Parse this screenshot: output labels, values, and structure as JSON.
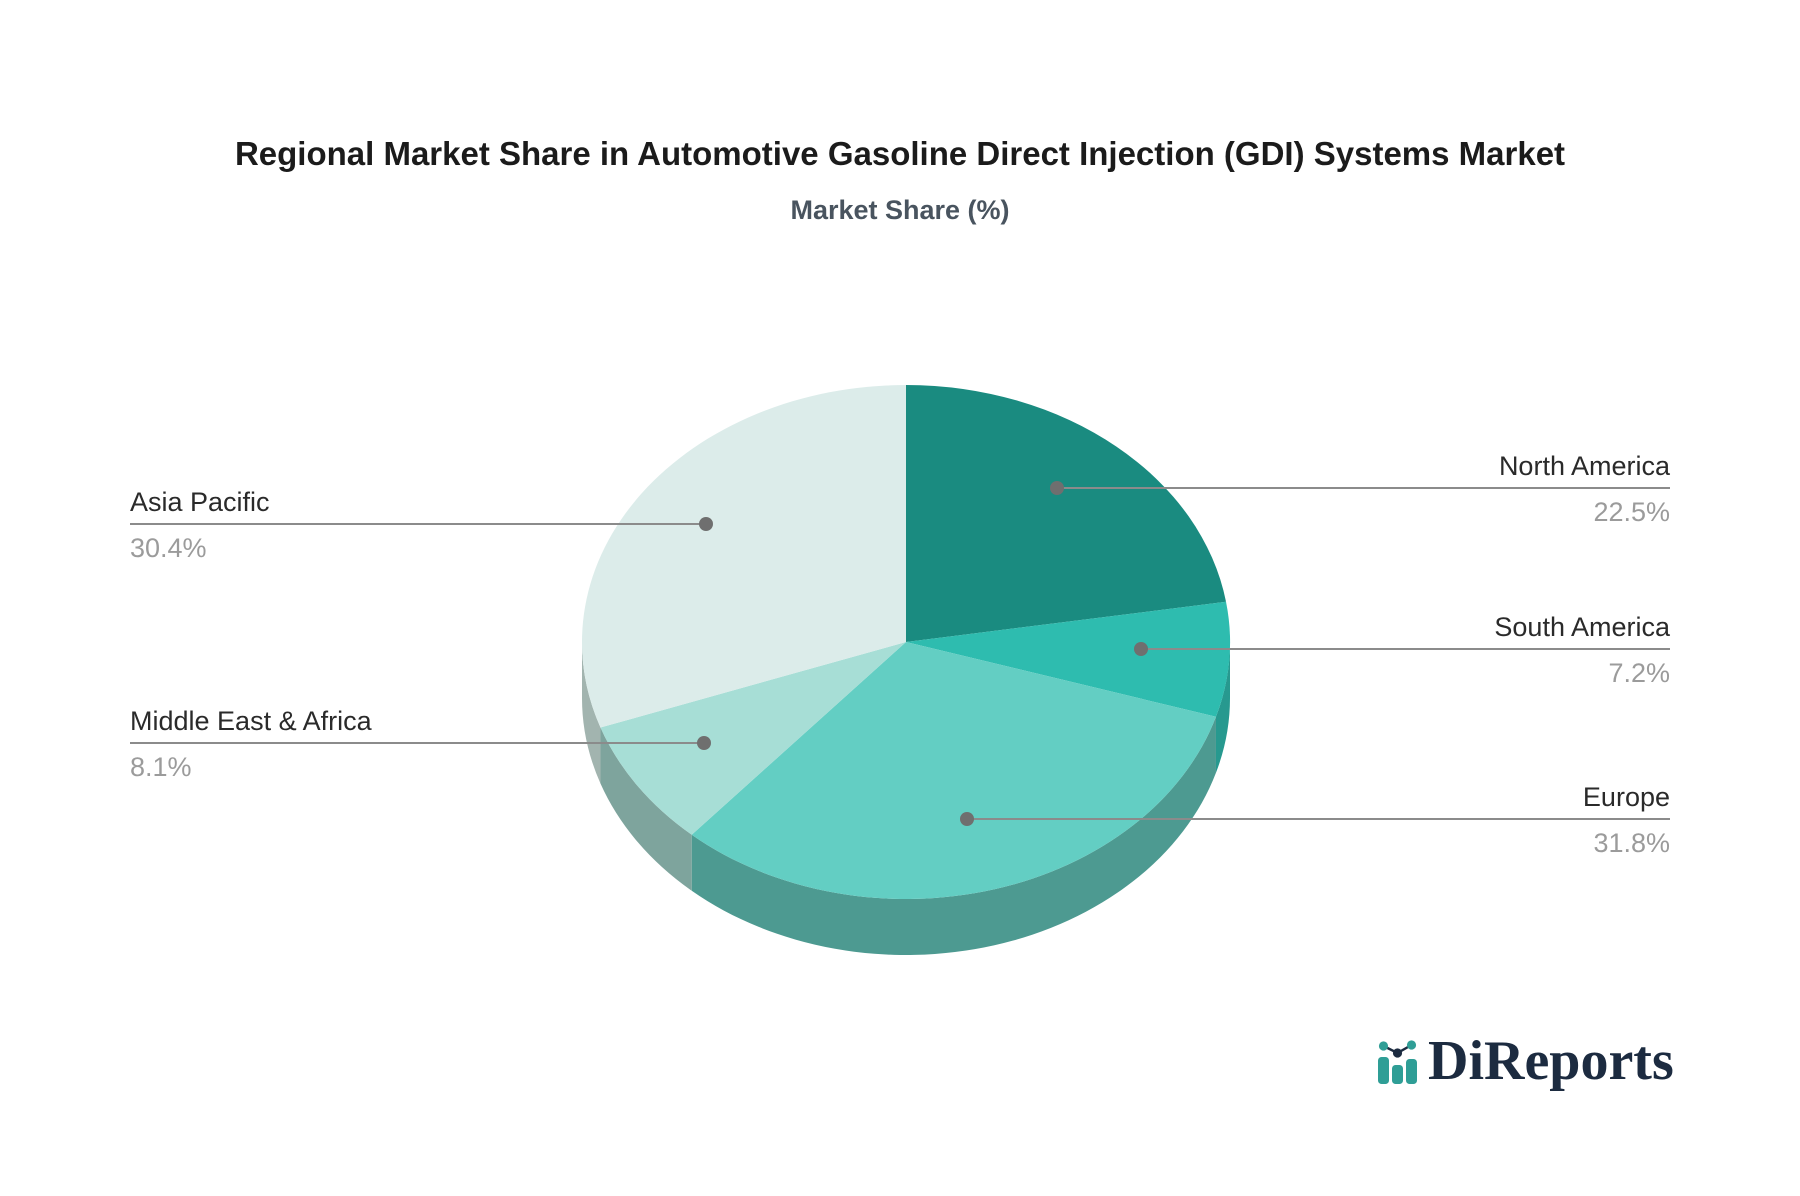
{
  "chart_data": {
    "type": "pie",
    "title": "Regional Market Share in Automotive Gasoline Direct Injection (GDI) Systems Market",
    "subtitle": "Market Share (%)",
    "unit": "%",
    "labels": [
      "North America",
      "South America",
      "Europe",
      "Middle East & Africa",
      "Asia Pacific"
    ],
    "values": [
      22.5,
      7.2,
      31.8,
      8.1,
      30.4
    ],
    "colors": [
      "#1a8b80",
      "#2ebcaf",
      "#63cec3",
      "#a7ded6",
      "#dcecea"
    ],
    "side_colors": [
      "#17776e",
      "#27998f",
      "#4d9a91",
      "#7ea49d",
      "#a2b4af"
    ],
    "start_angle_deg": 0,
    "direction": "clockwise",
    "effect_3d": true,
    "legend": "none",
    "leader_line_color": "#8b8b8b",
    "leader_dot_color": "#6f6f6f",
    "label_color": "#2a2a2a",
    "value_color": "#9b9b9b",
    "title_color": "#1b1b1b",
    "subtitle_color": "#49545f"
  },
  "branding": {
    "logo_text": "DiReports",
    "logo_color": "#1c2b40",
    "icon": "bar-line-chart-icon",
    "icon_teal": "#2f9e96",
    "icon_navy": "#1c2b40"
  }
}
